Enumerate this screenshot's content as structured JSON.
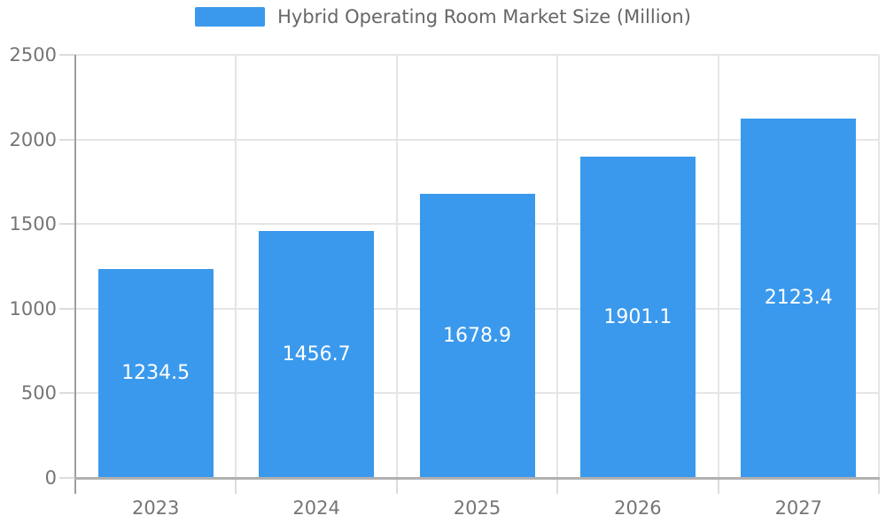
{
  "chart_data": {
    "type": "bar",
    "title": "Hybrid Operating Room Market Size (Million)",
    "legend_entries": [
      "Hybrid Operating Room Market Size (Million)"
    ],
    "legend_position": "top-center",
    "categories": [
      "2023",
      "2024",
      "2025",
      "2026",
      "2027"
    ],
    "series": [
      {
        "name": "Hybrid Operating Room Market Size (Million)",
        "values": [
          1234.5,
          1456.7,
          1678.9,
          1901.1,
          2123.4
        ]
      }
    ],
    "value_labels": [
      "1234.5",
      "1456.7",
      "1678.9",
      "1901.1",
      "2123.4"
    ],
    "xlabel": "",
    "ylabel": "",
    "ylim": [
      0,
      2500
    ],
    "y_ticks": [
      0,
      500,
      1000,
      1500,
      2000,
      2500
    ],
    "grid": true,
    "value_label_placement": "inside-center",
    "colors": {
      "bar": "#3A99EC",
      "value_label": "#FFFFFF",
      "axis_label": "#757575",
      "legend_text": "#666666",
      "gridline": "#E5E5E5",
      "axis_line": "#A6A6A6",
      "background": "#FFFFFF"
    }
  }
}
